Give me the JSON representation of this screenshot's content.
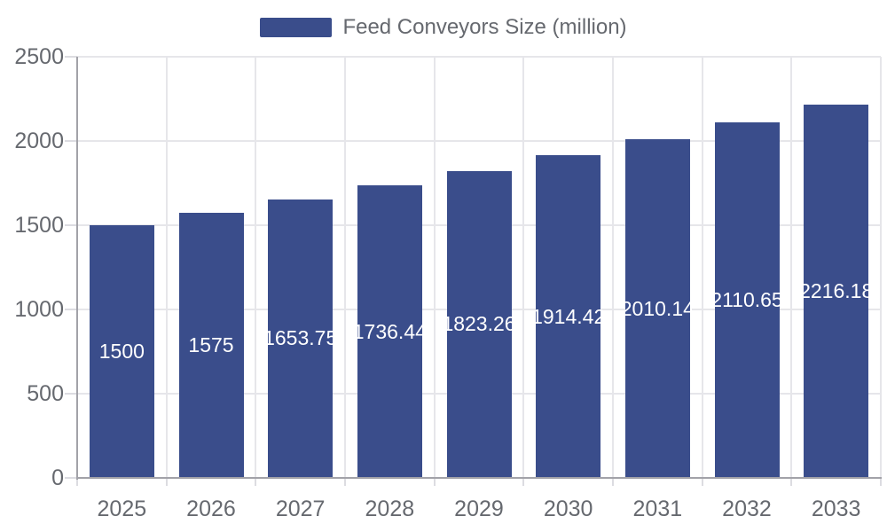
{
  "legend": {
    "label": "Feed Conveyors Size (million)"
  },
  "chart_data": {
    "type": "bar",
    "title": "Feed Conveyors Size (million)",
    "categories": [
      "2025",
      "2026",
      "2027",
      "2028",
      "2029",
      "2030",
      "2031",
      "2032",
      "2033"
    ],
    "values": [
      1500,
      1575,
      1653.75,
      1736.44,
      1823.26,
      1914.42,
      2010.14,
      2110.65,
      2216.18
    ],
    "value_labels": [
      "1500",
      "1575",
      "1653.75",
      "1736.44",
      "1823.26",
      "1914.42",
      "2010.14",
      "2110.65",
      "2216.18"
    ],
    "xlabel": "",
    "ylabel": "",
    "ylim": [
      0,
      2500
    ],
    "yticks": [
      0,
      500,
      1000,
      1500,
      2000,
      2500
    ],
    "grid": true,
    "legend_position": "top",
    "value_label_position": "inside-middle",
    "bar_color": "#3A4D8B",
    "value_label_color": "#FFFFFF",
    "axis_text_color": "#66696F",
    "grid_color": "#E6E6EA",
    "tick_color": "#DCDCE1",
    "axis_line_color": "#A2A2A8",
    "background": "#FFFFFF"
  }
}
